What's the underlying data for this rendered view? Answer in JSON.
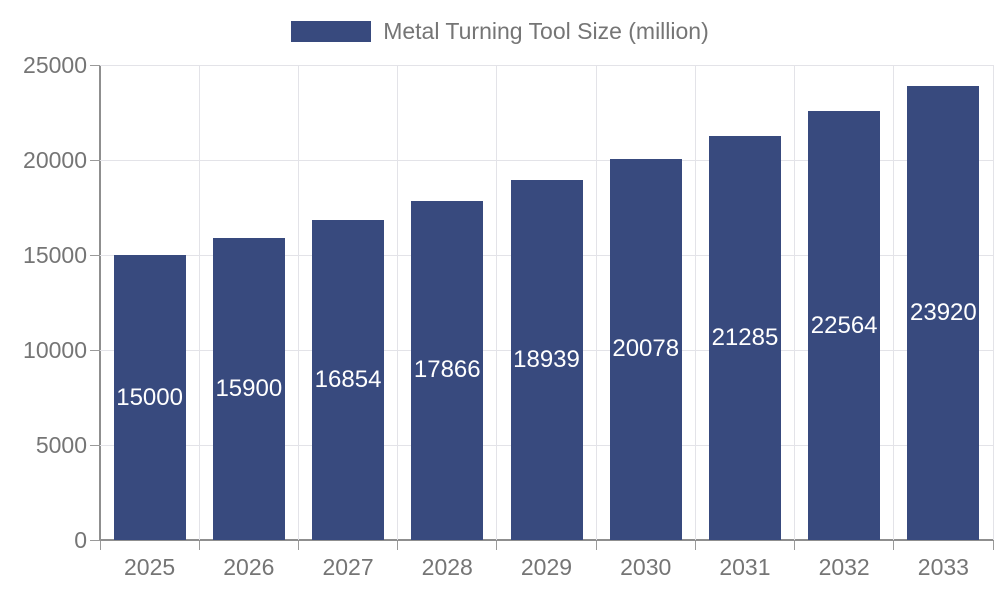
{
  "legend": {
    "label": "Metal Turning Tool Size (million)"
  },
  "chart_data": {
    "type": "bar",
    "title": "Metal Turning Tool Size (million)",
    "series_name": "Metal Turning Tool Size (million)",
    "categories": [
      "2025",
      "2026",
      "2027",
      "2028",
      "2029",
      "2030",
      "2031",
      "2032",
      "2033"
    ],
    "values": [
      15000,
      15900,
      16854,
      17866,
      18939,
      20078,
      21285,
      22564,
      23920
    ],
    "xlabel": "",
    "ylabel": "",
    "ylim": [
      0,
      25000
    ],
    "yticks": [
      0,
      5000,
      10000,
      15000,
      20000,
      25000
    ],
    "grid": true,
    "legend_position": "top-center",
    "bar_labels": "inside-center",
    "colors": {
      "bar": "#384A7E",
      "bar_label": "#FFFFFF",
      "axis_line": "#8F8F8F",
      "grid_line": "#E3E3E8",
      "tick_label": "#757575",
      "legend_text": "#757575",
      "background": "#FFFFFF"
    }
  }
}
